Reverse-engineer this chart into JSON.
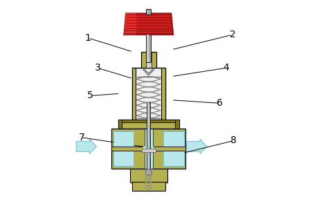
{
  "bg_color": "#ffffff",
  "olive": "#b5b050",
  "olive_dark": "#7a7520",
  "olive_mid": "#9a9535",
  "gray_light": "#d0d0d0",
  "gray_med": "#a8a8a8",
  "gray_dark": "#707070",
  "red_knob": "#c82020",
  "red_knob_dark": "#8b1010",
  "red_knob_hi": "#e03030",
  "spring_color": "#909090",
  "white_inner": "#f0f0f0",
  "cyan_fill": "#b8e8ec",
  "cyan_stroke": "#80c0c8",
  "black": "#000000",
  "label_fontsize": 10,
  "label_configs": [
    [
      "1",
      [
        0.145,
        0.825
      ],
      [
        0.355,
        0.76
      ]
    ],
    [
      "2",
      [
        0.82,
        0.84
      ],
      [
        0.535,
        0.77
      ]
    ],
    [
      "3",
      [
        0.19,
        0.685
      ],
      [
        0.355,
        0.635
      ]
    ],
    [
      "4",
      [
        0.79,
        0.685
      ],
      [
        0.535,
        0.645
      ]
    ],
    [
      "5",
      [
        0.155,
        0.555
      ],
      [
        0.295,
        0.565
      ]
    ],
    [
      "6",
      [
        0.76,
        0.52
      ],
      [
        0.535,
        0.535
      ]
    ],
    [
      "7",
      [
        0.115,
        0.36
      ],
      [
        0.415,
        0.315
      ]
    ],
    [
      "8",
      [
        0.825,
        0.345
      ],
      [
        0.56,
        0.28
      ]
    ]
  ]
}
